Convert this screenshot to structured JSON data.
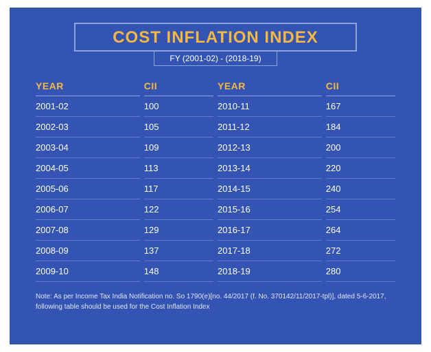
{
  "colors": {
    "card_bg": "#3454b4",
    "title": "#f6b940",
    "title_border": "#8da5dd",
    "subtitle": "#ffffff",
    "subtitle_border": "#8da5dd",
    "header_text": "#f6b940",
    "header_border": "#8da5dd",
    "cell_text": "#ffffff",
    "cell_border": "#5f7dc9",
    "note_text": "#dfe7f7"
  },
  "typography": {
    "title_fontsize": 24,
    "subtitle_fontsize": 12,
    "header_fontsize": 14,
    "cell_fontsize": 13,
    "note_fontsize": 10
  },
  "title": "COST INFLATION INDEX",
  "subtitle": "FY (2001-02) - (2018-19)",
  "table": {
    "headers": {
      "year": "YEAR",
      "cii": "CII"
    },
    "left": [
      {
        "year": "2001-02",
        "cii": "100"
      },
      {
        "year": "2002-03",
        "cii": "105"
      },
      {
        "year": "2003-04",
        "cii": "109"
      },
      {
        "year": "2004-05",
        "cii": "113"
      },
      {
        "year": "2005-06",
        "cii": "117"
      },
      {
        "year": "2006-07",
        "cii": "122"
      },
      {
        "year": "2007-08",
        "cii": "129"
      },
      {
        "year": "2008-09",
        "cii": "137"
      },
      {
        "year": "2009-10",
        "cii": "148"
      }
    ],
    "right": [
      {
        "year": "2010-11",
        "cii": "167"
      },
      {
        "year": "2011-12",
        "cii": "184"
      },
      {
        "year": "2012-13",
        "cii": "200"
      },
      {
        "year": "2013-14",
        "cii": "220"
      },
      {
        "year": "2014-15",
        "cii": "240"
      },
      {
        "year": "2015-16",
        "cii": "254"
      },
      {
        "year": "2016-17",
        "cii": "264"
      },
      {
        "year": "2017-18",
        "cii": "272"
      },
      {
        "year": "2018-19",
        "cii": "280"
      }
    ]
  },
  "note": "Note:  As per Income Tax India Notification no. So 1790(e)[no. 44/2017 (f. No. 370142/11/2017-tpl)], dated 5-6-2017, following table should be used for the Cost Inflation Index"
}
